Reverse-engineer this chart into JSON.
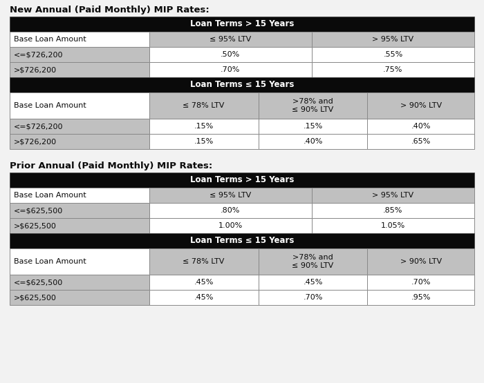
{
  "title1": "New Annual (Paid Monthly) MIP Rates:",
  "title2": "Prior Annual (Paid Monthly) MIP Rates:",
  "bg_color": "#f2f2f2",
  "black": "#0a0a0a",
  "white": "#ffffff",
  "gray_light": "#c0c0c0",
  "table1": {
    "section1_header": "Loan Terms > 15 Years",
    "section1_col_headers": [
      "Base Loan Amount",
      "≤ 95% LTV",
      "> 95% LTV"
    ],
    "section1_rows": [
      [
        "<=$726,200",
        ".50%",
        ".55%"
      ],
      [
        ">$726,200",
        ".70%",
        ".75%"
      ]
    ],
    "section2_header": "Loan Terms ≤ 15 Years",
    "section2_col_headers": [
      "Base Loan Amount",
      "≤ 78% LTV",
      ">78% and\n≤ 90% LTV",
      "> 90% LTV"
    ],
    "section2_rows": [
      [
        "<=$726,200",
        ".15%",
        ".15%",
        ".40%"
      ],
      [
        ">$726,200",
        ".15%",
        ".40%",
        ".65%"
      ]
    ]
  },
  "table2": {
    "section1_header": "Loan Terms > 15 Years",
    "section1_col_headers": [
      "Base Loan Amount",
      "≤ 95% LTV",
      "> 95% LTV"
    ],
    "section1_rows": [
      [
        "<=$625,500",
        ".80%",
        ".85%"
      ],
      [
        ">$625,500",
        "1.00%",
        "1.05%"
      ]
    ],
    "section2_header": "Loan Terms ≤ 15 Years",
    "section2_col_headers": [
      "Base Loan Amount",
      "≤ 78% LTV",
      ">78% and\n≤ 90% LTV",
      "> 90% LTV"
    ],
    "section2_rows": [
      [
        "<=$625,500",
        ".45%",
        ".45%",
        ".70%"
      ],
      [
        ">$625,500",
        ".45%",
        ".70%",
        ".95%"
      ]
    ]
  }
}
